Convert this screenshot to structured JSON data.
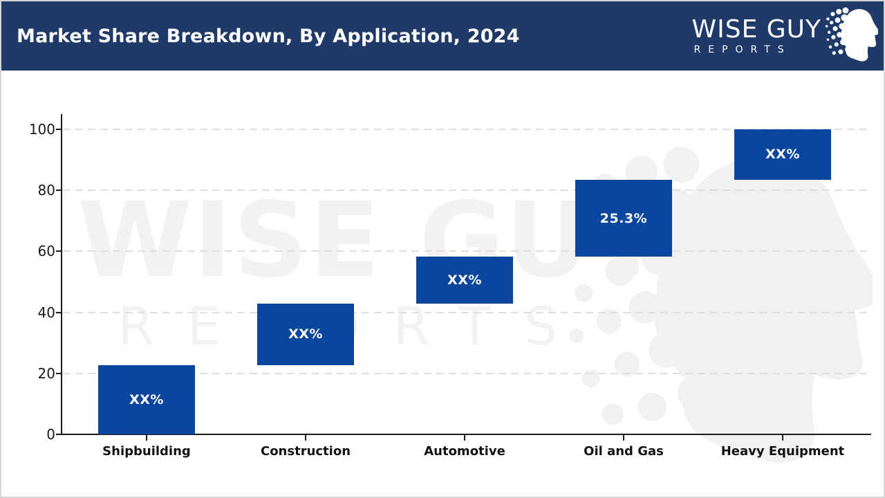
{
  "header": {
    "title": "Market Share Breakdown, By Application, 2024",
    "brand": {
      "name": "WISE GUY",
      "sub": "REPORTS"
    }
  },
  "watermark": {
    "line1": "WISE GUY",
    "line2": "REPORTS"
  },
  "colors": {
    "header_bg": "#1f3a68",
    "bar": "#0a469e",
    "bar_label": "#ffffff",
    "grid": "#dedede",
    "axis": "#1a1a1a",
    "page_border": "#d5d5d5",
    "watermark": "#f2f2f5"
  },
  "chart_data": {
    "type": "bar",
    "subtype": "waterfall-floating",
    "title": "Market Share Breakdown, By Application, 2024",
    "xlabel": "",
    "ylabel": "",
    "ylim": [
      0,
      105
    ],
    "yticks": [
      0,
      20,
      40,
      60,
      80,
      100
    ],
    "grid": "horizontal-dashed",
    "legend": "none",
    "categories": [
      "Shipbuilding",
      "Construction",
      "Automotive",
      "Oil and Gas",
      "Heavy Equipment"
    ],
    "segments": [
      {
        "category": "Shipbuilding",
        "start": 0,
        "end": 22.7,
        "value": 22.7,
        "label": "XX%"
      },
      {
        "category": "Construction",
        "start": 22.7,
        "end": 42.9,
        "value": 20.2,
        "label": "XX%"
      },
      {
        "category": "Automotive",
        "start": 42.9,
        "end": 58.2,
        "value": 15.3,
        "label": "XX%"
      },
      {
        "category": "Oil and Gas",
        "start": 58.2,
        "end": 83.5,
        "value": 25.3,
        "label": "25.3%"
      },
      {
        "category": "Heavy Equipment",
        "start": 83.5,
        "end": 100,
        "value": 16.5,
        "label": "XX%"
      }
    ]
  }
}
